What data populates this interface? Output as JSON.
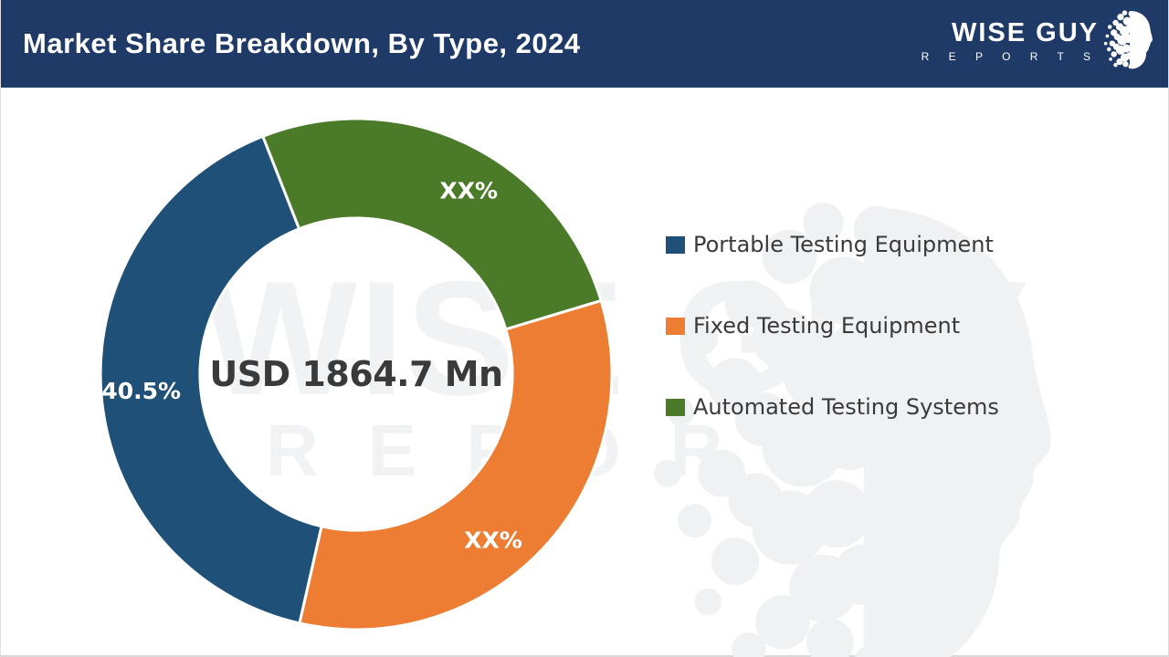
{
  "header": {
    "title": "Market Share Breakdown, By Type, 2024",
    "logo": {
      "name_line": "WISE GUY",
      "reports_line": "R E P O R T S"
    }
  },
  "watermark": {
    "name_line": "WISE GUY",
    "reports_line": "REPORTS"
  },
  "chart_data": {
    "type": "pie",
    "subtype": "donut",
    "title": "Market Share Breakdown, By Type, 2024",
    "center_label": "USD 1864.7 Mn",
    "legend_position": "right",
    "start_angle_deg": 111.4,
    "direction": "counterclockwise",
    "inner_radius_ratio": 0.61,
    "segments": [
      {
        "name": "Portable Testing Equipment",
        "label": "40.5%",
        "value_pct": 40.5,
        "estimated": false,
        "color": "#1F5078",
        "label_angle_deg": 184.5
      },
      {
        "name": "Fixed Testing Equipment",
        "label": "XX%",
        "value_pct": 33.2,
        "estimated": true,
        "color": "#EC7D33",
        "label_angle_deg": 309.5
      },
      {
        "name": "Automated Testing Systems",
        "label": "XX%",
        "value_pct": 26.3,
        "estimated": true,
        "color": "#4B7B28",
        "label_angle_deg": 58.5
      }
    ]
  },
  "colors": {
    "header_bg": "#1F3A67",
    "text_dark": "#3A3A3A",
    "watermark": "#F1F2F4",
    "border": "#D9D9D9",
    "segment_gap": "#FFFFFF"
  }
}
